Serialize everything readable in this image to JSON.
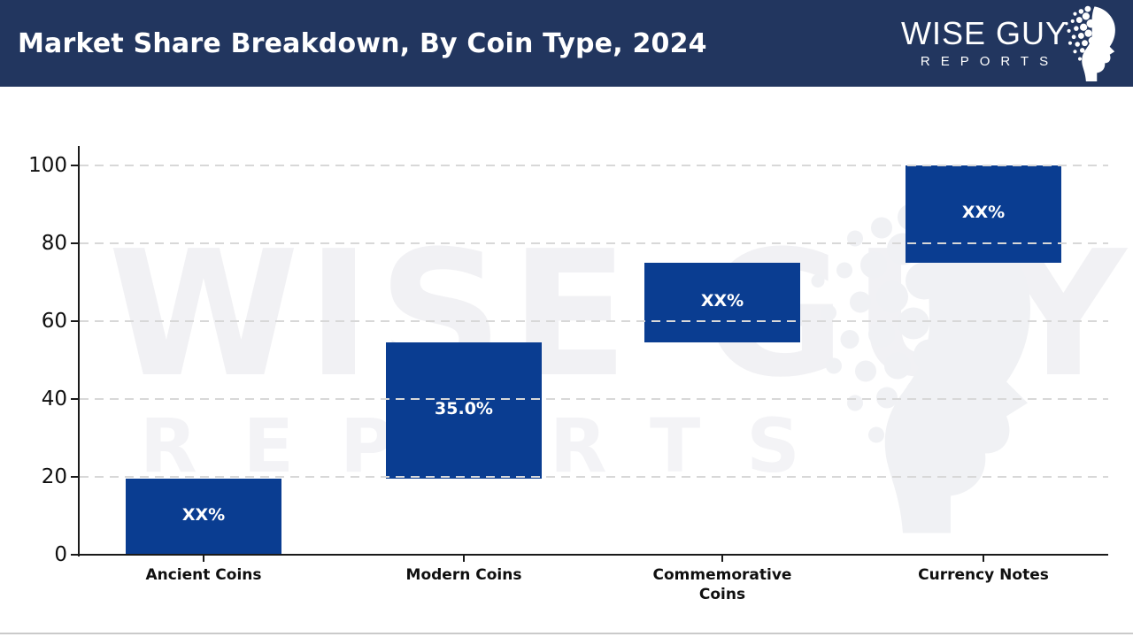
{
  "header": {
    "title": "Market Share Breakdown, By Coin Type, 2024",
    "logo": {
      "line1": "WISE GUY",
      "line2": "REPORTS"
    }
  },
  "watermark": {
    "line1": "WISE GUY",
    "line2": "REPORTS"
  },
  "colors": {
    "header_bg": "#22365F",
    "bar": "#0A3D91",
    "grid": "#D8D8D8",
    "axis": "#1A1A1A",
    "bar_label": "#FFFFFF",
    "watermark": "#F1F1F4"
  },
  "chart_data": {
    "type": "bar",
    "subtype": "floating-waterfall",
    "title": "Market Share Breakdown, By Coin Type, 2024",
    "categories": [
      "Ancient Coins",
      "Modern Coins",
      "Commemorative Coins",
      "Currency Notes"
    ],
    "segments": [
      {
        "category": "Ancient Coins",
        "start": 0,
        "end": 19.5,
        "label": "XX%"
      },
      {
        "category": "Modern Coins",
        "start": 19.5,
        "end": 54.5,
        "label": "35.0%"
      },
      {
        "category": "Commemorative Coins",
        "start": 54.5,
        "end": 75,
        "label": "XX%"
      },
      {
        "category": "Currency Notes",
        "start": 75,
        "end": 100,
        "label": "XX%"
      }
    ],
    "xlabel": "",
    "ylabel": "",
    "yticks": [
      0,
      20,
      40,
      60,
      80,
      100
    ],
    "ylim": [
      0,
      105
    ],
    "grid": "horizontal-dashed",
    "legend": "none"
  }
}
